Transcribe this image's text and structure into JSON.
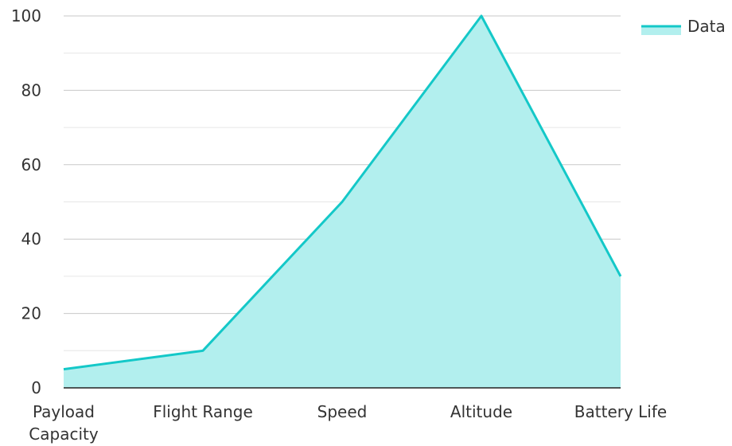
{
  "chart_data": {
    "type": "area",
    "categories": [
      "Payload Capacity",
      "Flight Range",
      "Speed",
      "Altitude",
      "Battery Life"
    ],
    "series": [
      {
        "name": "Data",
        "values": [
          5,
          10,
          50,
          100,
          30
        ]
      }
    ],
    "ylim": [
      0,
      100
    ],
    "yticks": [
      0,
      20,
      40,
      60,
      80,
      100
    ],
    "grid": true,
    "legend": "top-right",
    "colors": {
      "line": "#14c8c8",
      "fill": "#b2efee",
      "grid_major": "#c8c8c8",
      "grid_minor": "#e6e6e6",
      "axis": "#222222",
      "text": "#333333"
    }
  }
}
